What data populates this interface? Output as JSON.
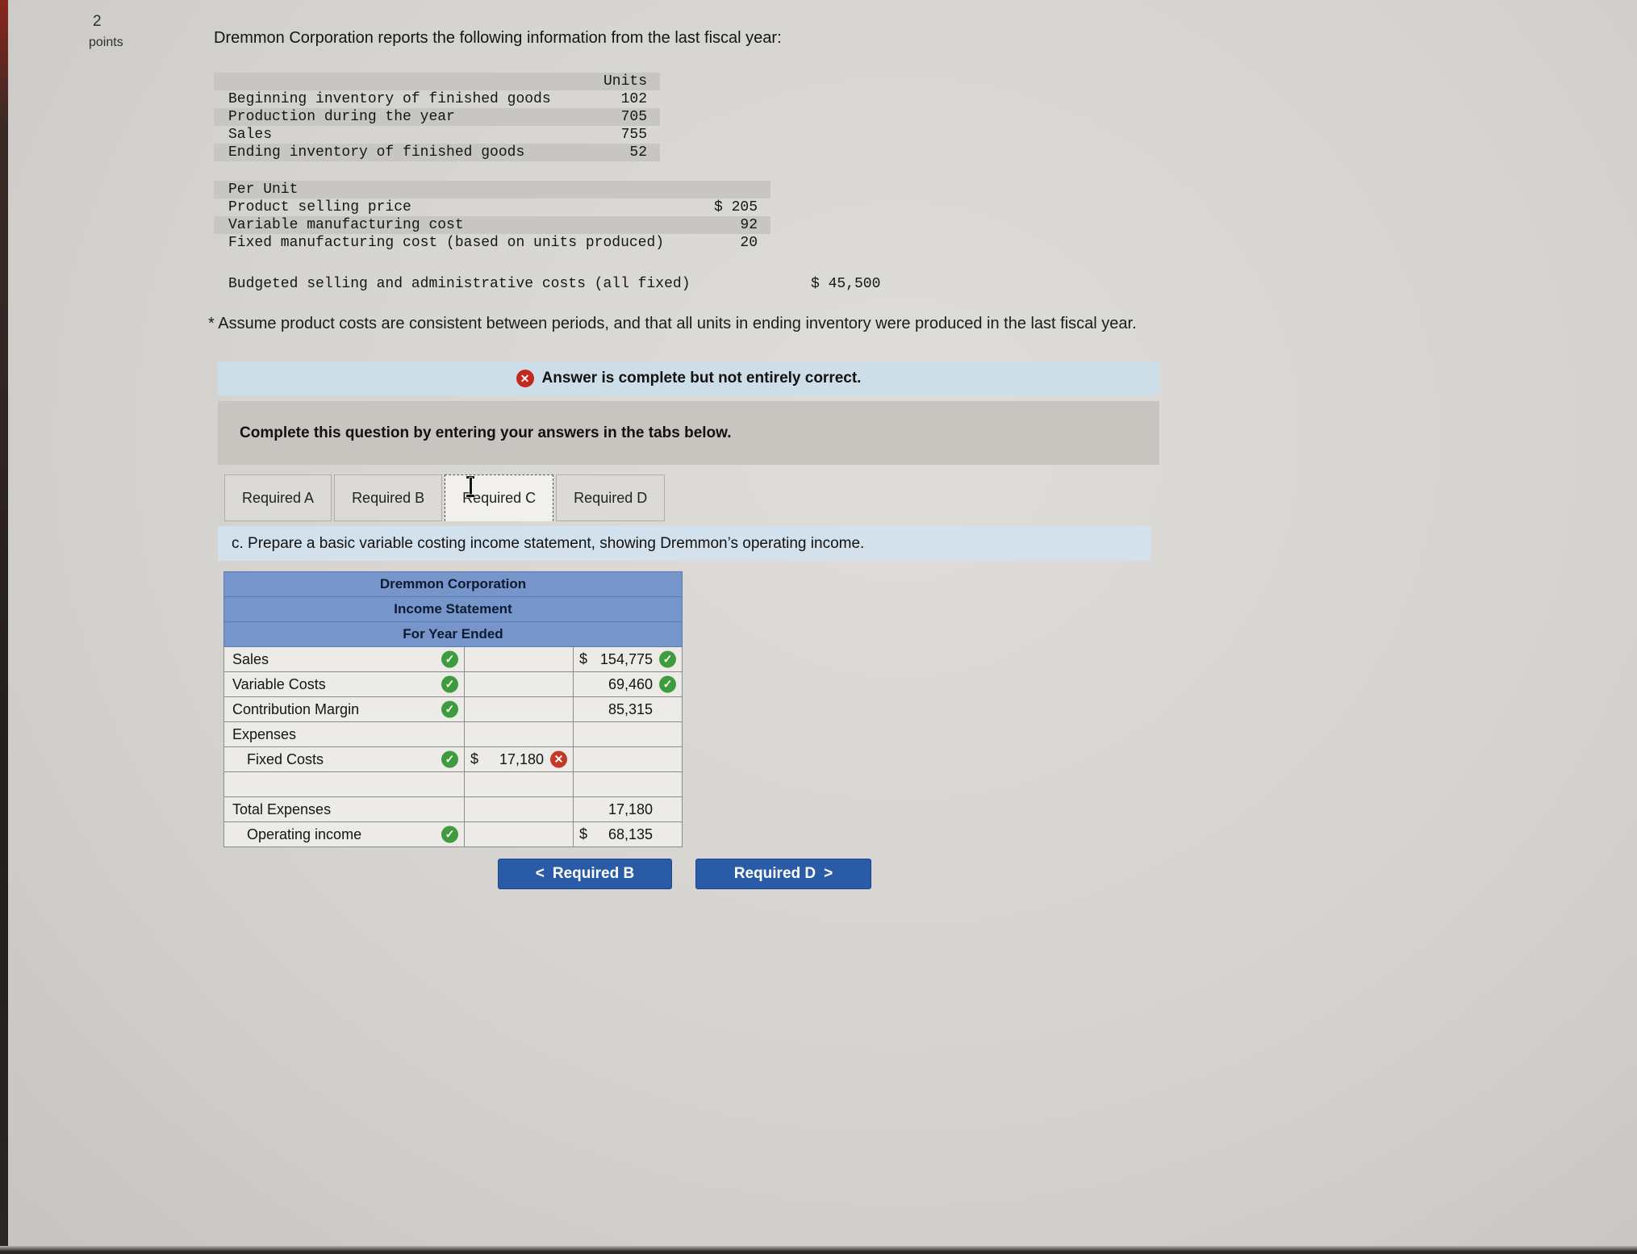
{
  "meta": {
    "points_value": "2",
    "points_label": "points"
  },
  "colors": {
    "correct_green": "#3e9b3e",
    "incorrect_red": "#c2382a",
    "table_header_blue": "#7695ca",
    "nav_button_blue": "#2a5ba7",
    "alert_bg": "#cddee9",
    "partc_bg": "#d3e1ec"
  },
  "problem": {
    "intro": "Dremmon Corporation reports the following information from the last fiscal year:",
    "units_table": {
      "header": "Units",
      "rows": [
        {
          "label": "Beginning inventory of finished goods",
          "value": "102"
        },
        {
          "label": "Production during the year",
          "value": "705"
        },
        {
          "label": "Sales",
          "value": "755"
        },
        {
          "label": "Ending inventory of finished goods",
          "value": "52"
        }
      ]
    },
    "per_unit_table": {
      "header": "Per Unit",
      "rows": [
        {
          "label": "Product selling price",
          "value": "$ 205"
        },
        {
          "label": "Variable manufacturing cost",
          "value": "92"
        },
        {
          "label": "Fixed manufacturing cost (based on units produced)",
          "value": "20"
        }
      ]
    },
    "budget_line": {
      "label": "Budgeted selling and administrative costs (all fixed)",
      "value": "$ 45,500"
    },
    "footnote": "* Assume product costs are consistent between periods, and that all units in ending inventory were produced in the last fiscal year."
  },
  "feedback": {
    "alert_text": "Answer is complete but not entirely correct.",
    "instruction": "Complete this question by entering your answers in the tabs below."
  },
  "tabs": [
    {
      "label": "Required A"
    },
    {
      "label": "Required B"
    },
    {
      "label": "Required C"
    },
    {
      "label": "Required D"
    }
  ],
  "part_c": {
    "instruction": "c. Prepare a basic variable costing income statement, showing Dremmon’s operating income."
  },
  "statement": {
    "title": "Dremmon Corporation",
    "subtitle": "Income Statement",
    "period": "For Year Ended",
    "rows": [
      {
        "label": "Sales",
        "amount_dollar": "$",
        "amount": "154,775"
      },
      {
        "label": "Variable Costs",
        "amount": "69,460"
      },
      {
        "label": "Contribution Margin",
        "amount": "85,315"
      },
      {
        "label": "Expenses"
      },
      {
        "label": "Fixed Costs",
        "mid_dollar": "$",
        "mid_amount": "17,180"
      },
      {
        "label": ""
      },
      {
        "label": "Total Expenses",
        "amount": "17,180"
      },
      {
        "label": "Operating income",
        "amount_dollar": "$",
        "amount": "68,135"
      }
    ]
  },
  "nav": {
    "prev_chevron": "<",
    "prev_label": "Required B",
    "next_label": "Required D",
    "next_chevron": ">"
  },
  "icons": {
    "correct": "✓",
    "incorrect": "✕"
  }
}
